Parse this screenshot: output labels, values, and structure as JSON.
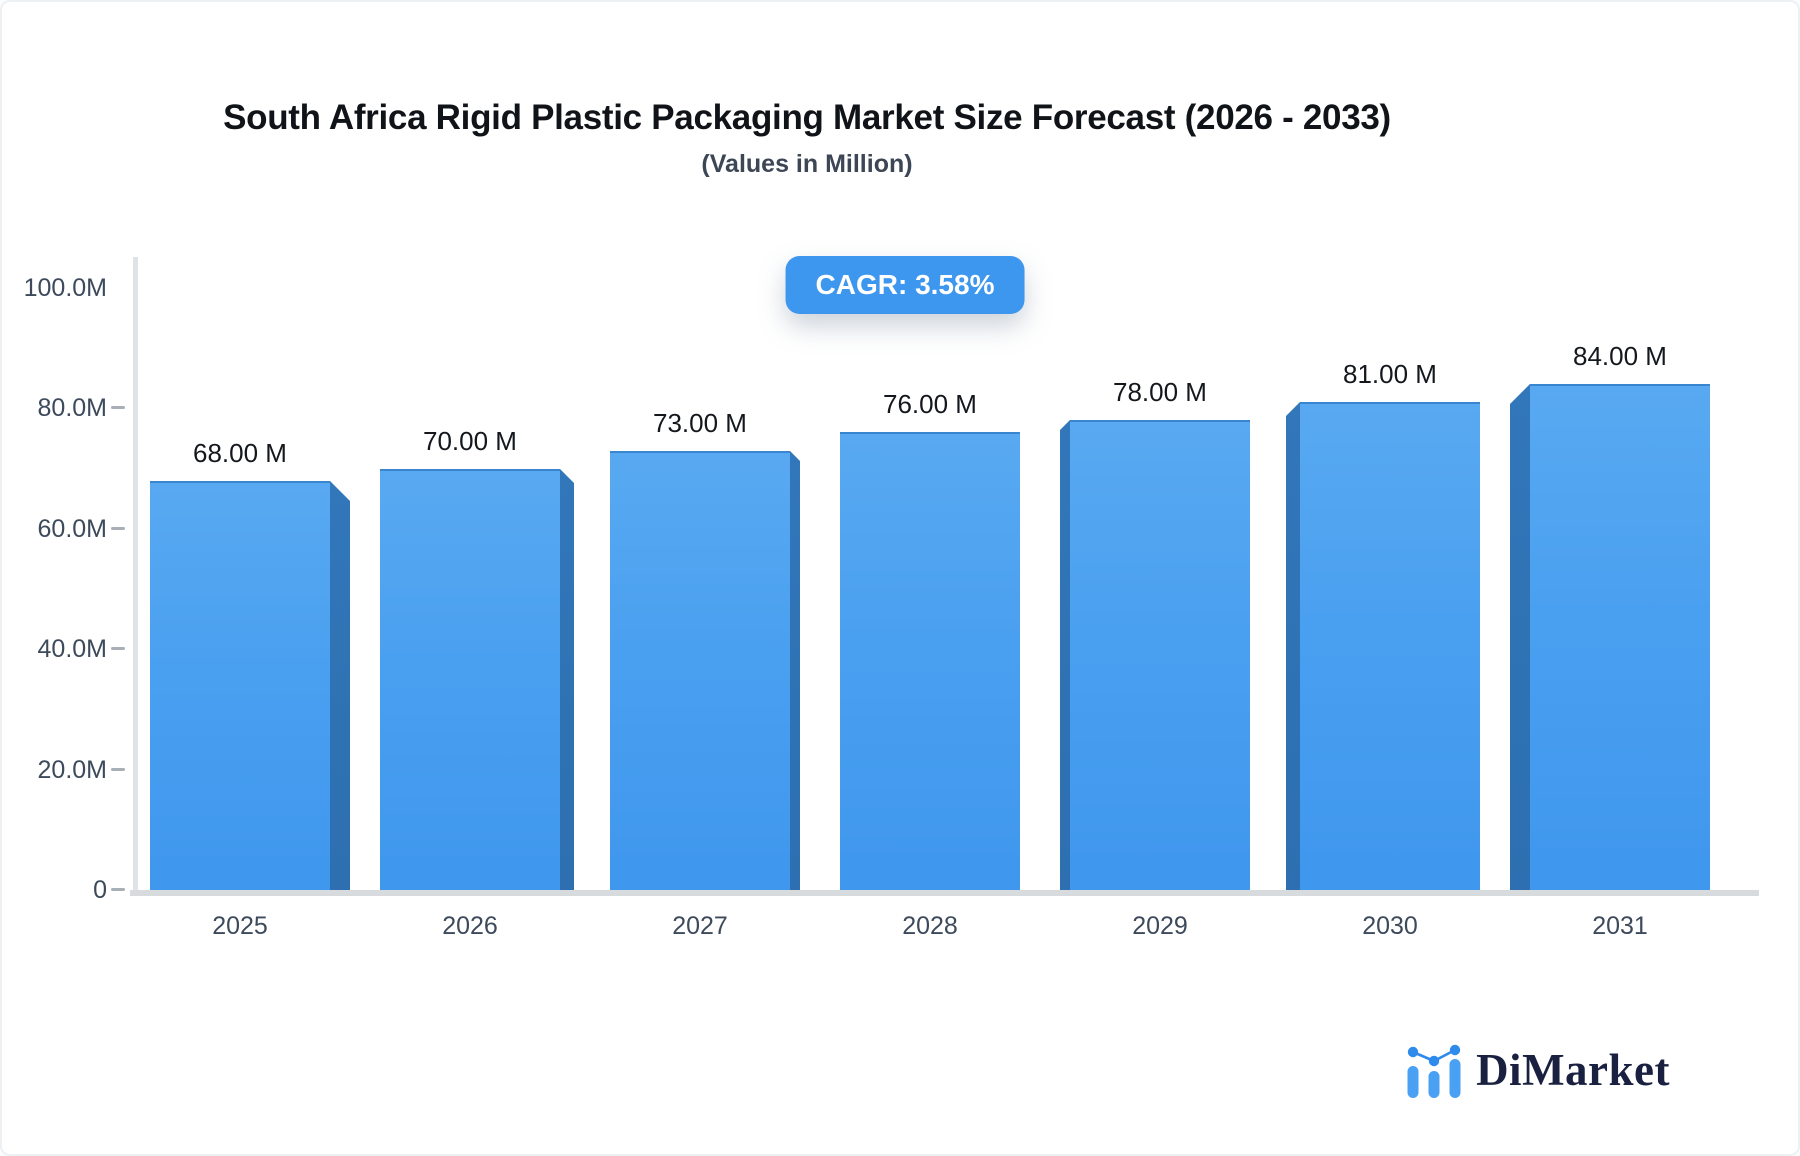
{
  "header": {
    "title": "South Africa Rigid Plastic Packaging Market Size Forecast (2026 - 2033)",
    "subtitle": "(Values in Million)"
  },
  "badge": {
    "label": "CAGR: 3.58%",
    "bg_color": "#3e97ee",
    "text_color": "#ffffff"
  },
  "chart_data": {
    "type": "bar",
    "title": "South Africa Rigid Plastic Packaging Market Size Forecast (2026 - 2033)",
    "subtitle": "(Values in Million)",
    "unit": "Million",
    "categories": [
      "2025",
      "2026",
      "2027",
      "2028",
      "2029",
      "2030",
      "2031"
    ],
    "values": [
      68,
      70,
      73,
      76,
      78,
      81,
      84
    ],
    "value_labels": [
      "68.00 M",
      "70.00 M",
      "73.00 M",
      "76.00 M",
      "78.00 M",
      "81.00 M",
      "84.00 M"
    ],
    "cagr": "3.58%",
    "ylim": [
      0,
      100
    ],
    "yticks": [
      {
        "label": "100.0M",
        "value": 100,
        "dash": false
      },
      {
        "label": "80.0M",
        "value": 80,
        "dash": true
      },
      {
        "label": "60.0M",
        "value": 60,
        "dash": true
      },
      {
        "label": "40.0M",
        "value": 40,
        "dash": true
      },
      {
        "label": "20.0M",
        "value": 20,
        "dash": true
      },
      {
        "label": "0",
        "value": 0,
        "dash": true
      }
    ],
    "grid": false,
    "legend": false,
    "bar_face_color": "#4aa0f0",
    "bar_side_color": "#2f72b5",
    "axis_color": "#dfe3e6",
    "baseline_color": "#d7dbde",
    "label_color": "#3d4a5c"
  },
  "logo": {
    "text": "DiMarket",
    "icon": "mini-bar-chart",
    "icon_bar_color": "#4aa0f2",
    "icon_dot_color": "#2e8beb",
    "text_color": "#1a2140"
  }
}
